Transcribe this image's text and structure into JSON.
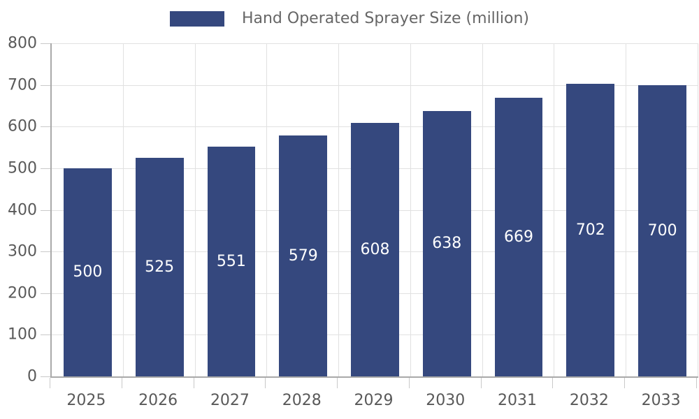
{
  "legend": {
    "label": "Hand Operated Sprayer Size (million)"
  },
  "chart_data": {
    "type": "bar",
    "title": "Hand Operated Sprayer Size (million)",
    "categories": [
      "2025",
      "2026",
      "2027",
      "2028",
      "2029",
      "2030",
      "2031",
      "2032",
      "2033"
    ],
    "values": [
      500,
      525,
      551,
      579,
      608,
      638,
      669,
      702,
      700
    ],
    "series": [
      {
        "name": "Hand Operated Sprayer Size (million)",
        "values": [
          500,
          525,
          551,
          579,
          608,
          638,
          669,
          702,
          700
        ]
      }
    ],
    "xlabel": "",
    "ylabel": "",
    "ylim": [
      0,
      800
    ],
    "ytick_step": 100,
    "yticks": [
      0,
      100,
      200,
      300,
      400,
      500,
      600,
      700,
      800
    ],
    "grid": "horizontal-and-vertical",
    "legend_position": "top-center",
    "value_labels": "inside-center"
  },
  "colors": {
    "bar": "#35487E",
    "bar_label": "#FFFFFF",
    "grid": "#E1E1E1",
    "axis": "#A9A9A9",
    "tick": "#C9C9C9",
    "axis_text": "#595959",
    "legend_text": "#666666",
    "background": "#FFFFFF"
  }
}
